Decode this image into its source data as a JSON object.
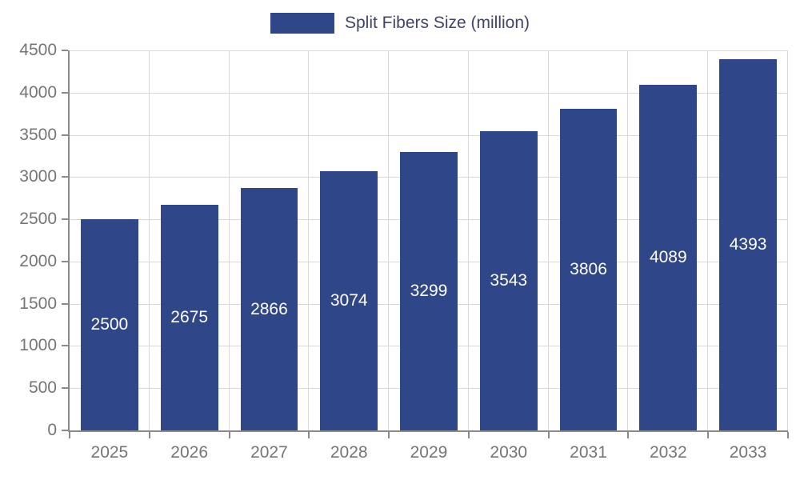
{
  "chart_data": {
    "type": "bar",
    "title": "",
    "legend": "Split Fibers Size (million)",
    "categories": [
      "2025",
      "2026",
      "2027",
      "2028",
      "2029",
      "2030",
      "2031",
      "2032",
      "2033"
    ],
    "values": [
      2500,
      2675,
      2866,
      3074,
      3299,
      3543,
      3806,
      4089,
      4393
    ],
    "xlabel": "",
    "ylabel": "",
    "ylim": [
      0,
      4500
    ],
    "yticks": [
      0,
      500,
      1000,
      1500,
      2000,
      2500,
      3000,
      3500,
      4000,
      4500
    ],
    "grid": true,
    "legend_position": "top-center",
    "bar_color": "#2f4788",
    "bar_label_color": "#ffffff",
    "background_color": "#ffffff"
  }
}
